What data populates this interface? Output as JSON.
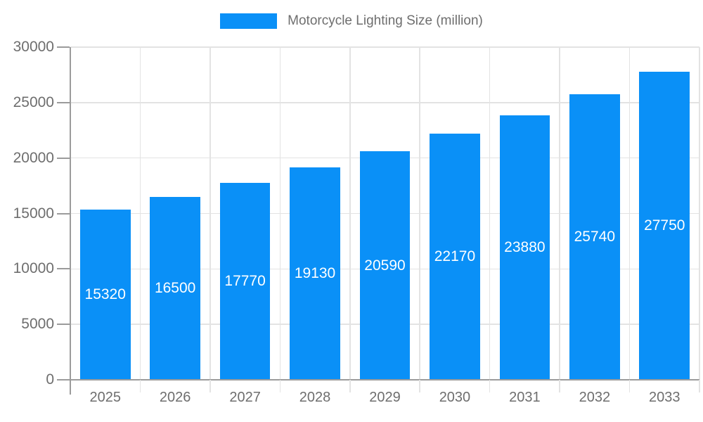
{
  "chart_data": {
    "type": "bar",
    "title": "Motorcycle Lighting Size (million)",
    "series_name": "Motorcycle Lighting Size (million)",
    "categories": [
      "2025",
      "2026",
      "2027",
      "2028",
      "2029",
      "2030",
      "2031",
      "2032",
      "2033"
    ],
    "values": [
      15320,
      16500,
      17770,
      19130,
      20590,
      22170,
      23880,
      25740,
      27750
    ],
    "xlabel": "",
    "ylabel": "",
    "ylim": [
      0,
      30000
    ],
    "yticks": [
      0,
      5000,
      10000,
      15000,
      20000,
      25000,
      30000
    ],
    "grid": true,
    "legend_position": "top",
    "value_labels_shown": true
  },
  "colors": {
    "bar": "#0a90f7",
    "grid": "#e3e3e3",
    "axis": "#9b9b9b",
    "tick_text": "#6e6e6e",
    "value_label_text": "#ffffff",
    "background": "#ffffff"
  }
}
